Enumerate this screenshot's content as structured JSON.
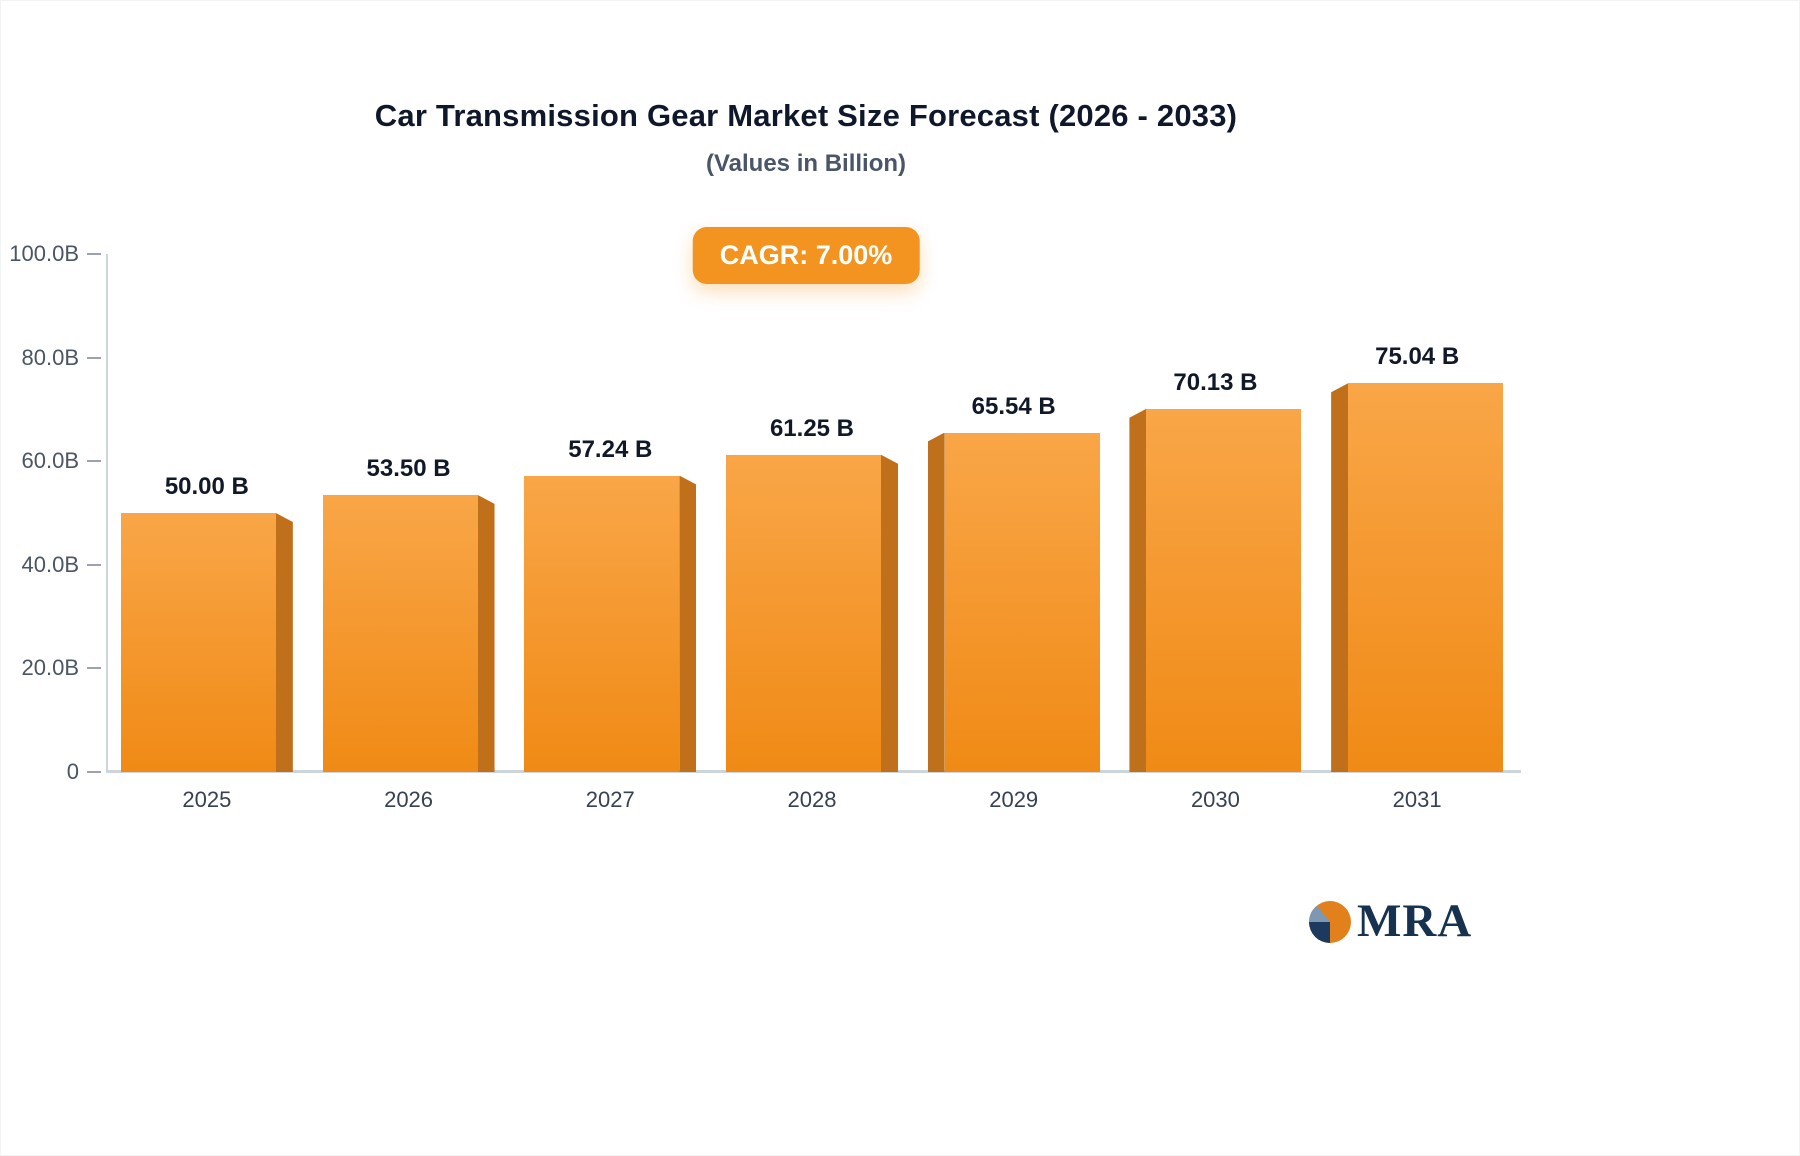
{
  "chart_data": {
    "type": "bar",
    "title": "Car Transmission Gear Market Size Forecast (2026 - 2033)",
    "subtitle": "(Values in Billion)",
    "badge": "CAGR: 7.00%",
    "categories": [
      "2025",
      "2026",
      "2027",
      "2028",
      "2029",
      "2030",
      "2031"
    ],
    "values": [
      50.0,
      53.5,
      57.24,
      61.25,
      65.54,
      70.13,
      75.04
    ],
    "value_labels": [
      "50.00 B",
      "53.50 B",
      "57.24 B",
      "61.25 B",
      "65.54 B",
      "70.13 B",
      "75.04 B"
    ],
    "xlabel": "",
    "ylabel": "",
    "ylim": [
      0,
      100
    ],
    "grid": "off",
    "legend": "none",
    "yticks": [
      {
        "value": 100,
        "label": "100.0B"
      },
      {
        "value": 80,
        "label": "80.0B"
      },
      {
        "value": 60,
        "label": "60.0B"
      },
      {
        "value": 40,
        "label": "40.0B"
      },
      {
        "value": 20,
        "label": "20.0B"
      },
      {
        "value": 0,
        "label": "0"
      }
    ],
    "colors": {
      "bar_top": "#F9A648",
      "bar_bottom": "#F08A15",
      "bar_side": "#C06F1A",
      "badge_bg": "#F2941F",
      "badge_text": "#FFFFFF",
      "axis": "#CDD5DC",
      "tick_text": "#4B5563",
      "label_text": "#111827"
    }
  },
  "logo": {
    "text": "MRA"
  }
}
